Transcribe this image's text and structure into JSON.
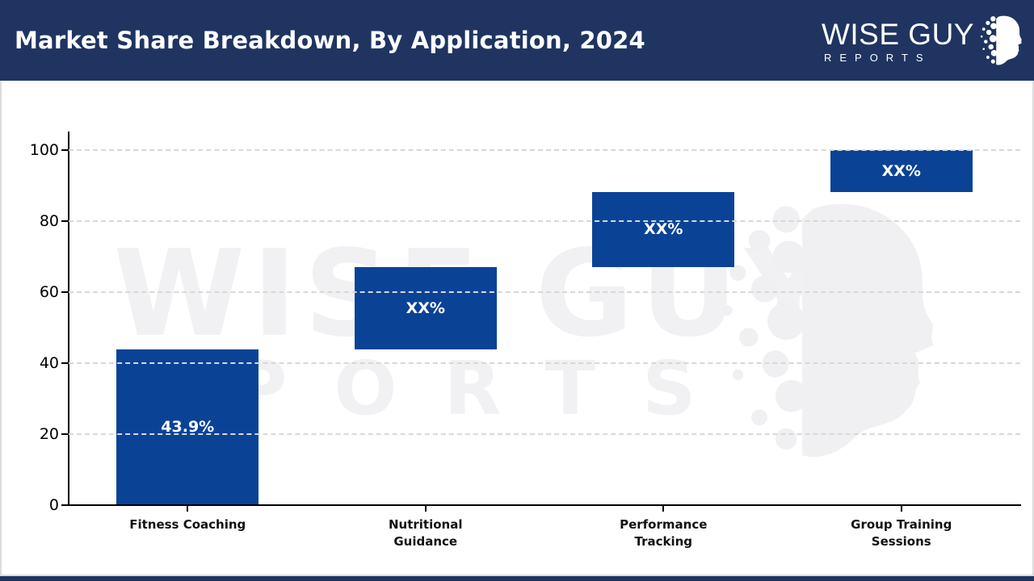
{
  "header": {
    "title": "Market Share Breakdown, By Application, 2024",
    "logo": {
      "wordmark": "WISE GUY",
      "subtitle": "REPORTS"
    }
  },
  "watermark": {
    "line1": "WISE GUY",
    "line2": "PORTS"
  },
  "colors": {
    "header_bg": "#1f3461",
    "bar_blue": "#0a4396",
    "grid_gray": "#d8d8d8",
    "watermark_gray": "#f1f1f3"
  },
  "chart_data": {
    "type": "bar",
    "subtype": "waterfall",
    "title": "Market Share Breakdown, By Application, 2024",
    "categories": [
      "Fitness Coaching",
      "Nutritional Guidance",
      "Performance Tracking",
      "Group Training Sessions"
    ],
    "segments": [
      {
        "category": "Fitness Coaching",
        "label_lines": [
          "Fitness Coaching"
        ],
        "start": 0,
        "end": 43.9,
        "value_label": "43.9%"
      },
      {
        "category": "Nutritional Guidance",
        "label_lines": [
          "Nutritional",
          "Guidance"
        ],
        "start": 43.9,
        "end": 67.1,
        "value_label": "XX%"
      },
      {
        "category": "Performance Tracking",
        "label_lines": [
          "Performance",
          "Tracking"
        ],
        "start": 67.1,
        "end": 88.2,
        "value_label": "XX%"
      },
      {
        "category": "Group Training Sessions",
        "label_lines": [
          "Group Training",
          "Sessions"
        ],
        "start": 88.2,
        "end": 100,
        "value_label": "XX%"
      }
    ],
    "ylim": [
      0,
      100
    ],
    "yticks": [
      0,
      20,
      40,
      60,
      80,
      100
    ],
    "grid": "horizontal-dashed",
    "legend": "none",
    "bar_color": "#0a4396",
    "value_label_color": "#ffffff"
  }
}
